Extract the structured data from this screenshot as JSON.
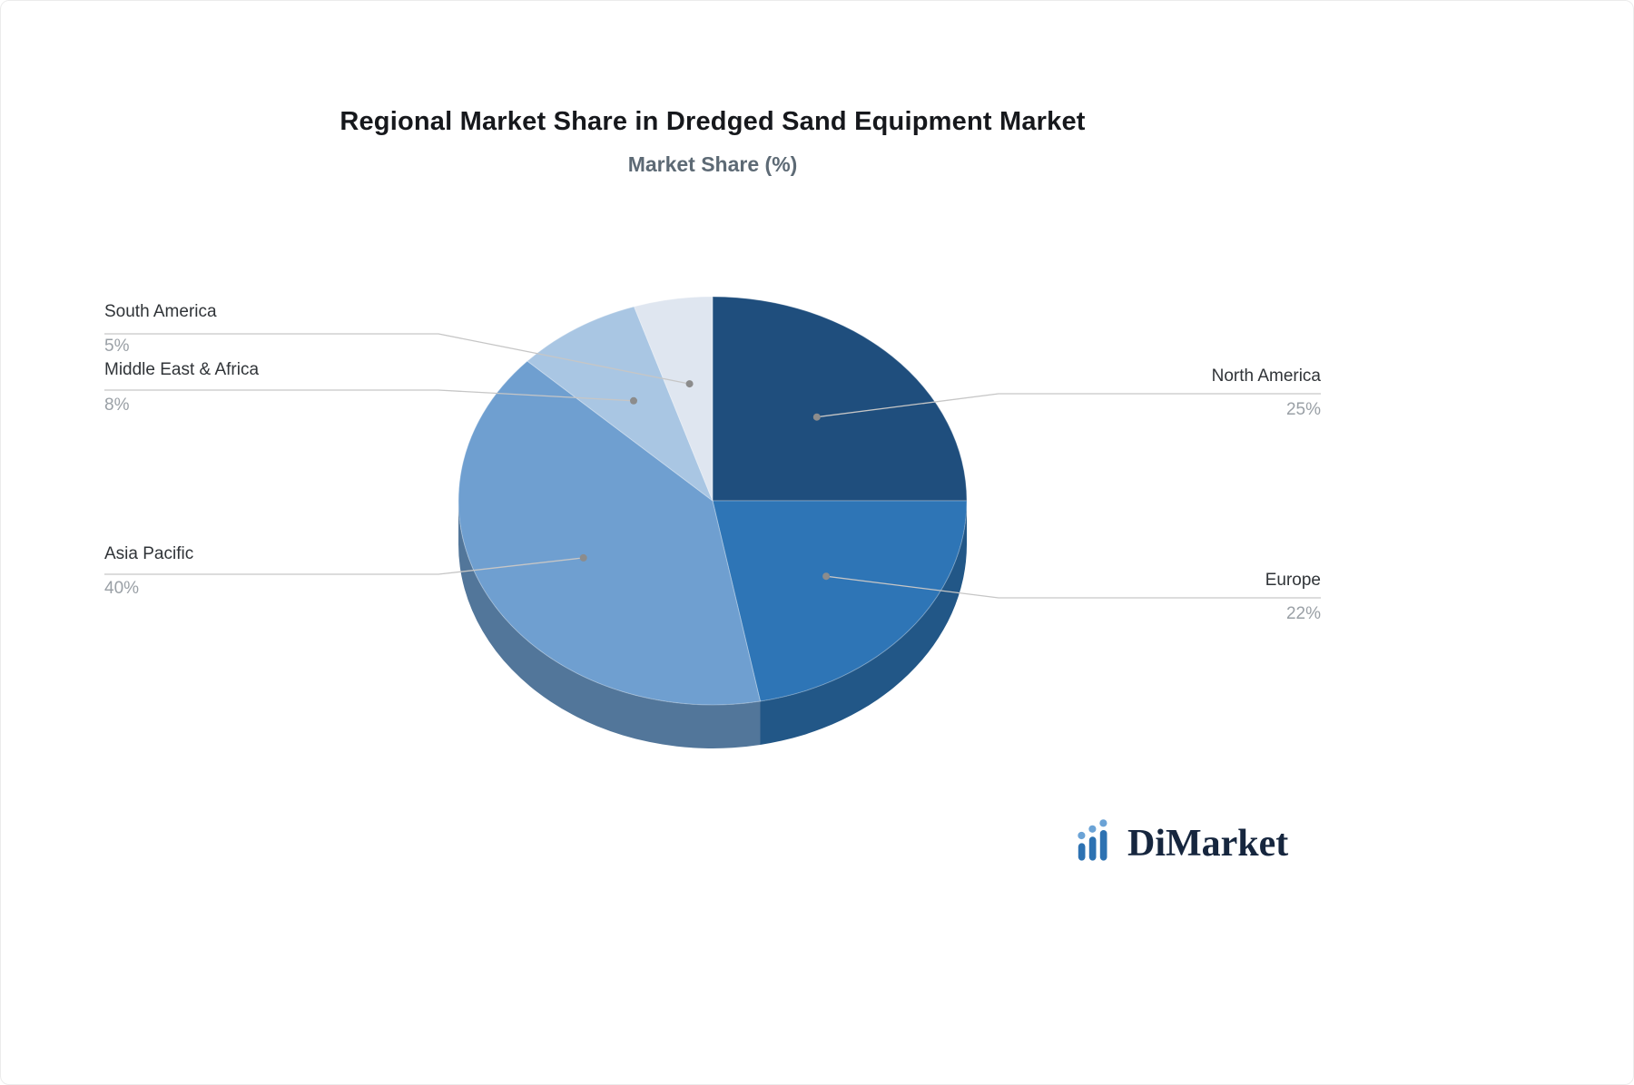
{
  "chart_data": {
    "type": "pie",
    "title": "Regional Market Share in Dredged Sand Equipment Market",
    "subtitle": "Market Share (%)",
    "categories": [
      "North America",
      "Europe",
      "Asia Pacific",
      "Middle East & Africa",
      "South America"
    ],
    "values": [
      25,
      22,
      40,
      8,
      5
    ],
    "value_labels": [
      "25%",
      "22%",
      "40%",
      "8%",
      "5%"
    ],
    "colors": [
      "#1f4e7d",
      "#2e75b6",
      "#6f9fd0",
      "#a9c6e3",
      "#dfe6f0"
    ],
    "start_angle": 0,
    "clockwise": true,
    "style": "3d",
    "label_position": "outside-leader-lines",
    "legend": "none",
    "background": "#ffffff"
  },
  "brand": {
    "name": "DiMarket",
    "icon": "bar-chart-logo-icon",
    "accent_color": "#2d72b2",
    "dot_color": "#6ba3d6",
    "text_color": "#16263e"
  }
}
